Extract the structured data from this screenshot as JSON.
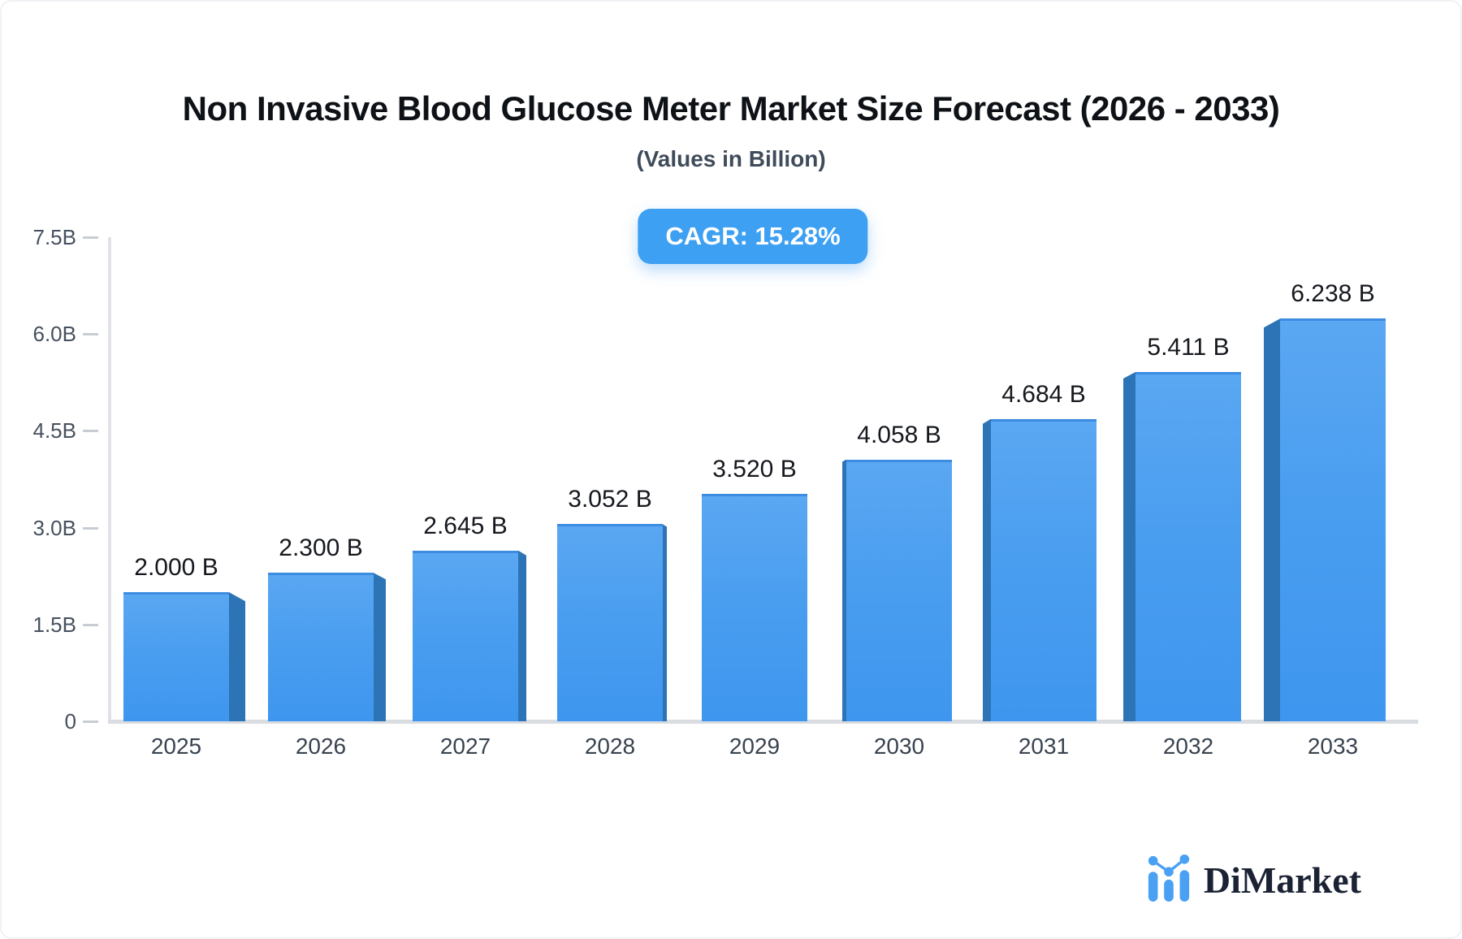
{
  "title": "Non Invasive Blood Glucose Meter Market Size Forecast (2026 - 2033)",
  "subtitle": "(Values in Billion)",
  "badge": {
    "label": "CAGR: 15.28%",
    "color": "#3da0f2"
  },
  "chart_data": {
    "type": "bar",
    "title": "Non Invasive Blood Glucose Meter Market Size Forecast (2026 - 2033)",
    "subtitle": "(Values in Billion)",
    "categories": [
      "2025",
      "2026",
      "2027",
      "2028",
      "2029",
      "2030",
      "2031",
      "2032",
      "2033"
    ],
    "values": [
      2.0,
      2.3,
      2.645,
      3.052,
      3.52,
      4.058,
      4.684,
      5.411,
      6.238
    ],
    "value_labels": [
      "2.000 B",
      "2.300 B",
      "2.645 B",
      "3.052 B",
      "3.520 B",
      "4.058 B",
      "4.684 B",
      "5.411 B",
      "6.238 B"
    ],
    "xlabel": "",
    "ylabel": "",
    "ylim": [
      0,
      7.5
    ],
    "ytick_values": [
      0,
      1.5,
      3.0,
      4.5,
      6.0,
      7.5
    ],
    "ytick_labels": [
      "0",
      "1.5B",
      "3.0B",
      "4.5B",
      "6.0B",
      "7.5B"
    ],
    "grid": false,
    "legend": "none",
    "annotation": "CAGR: 15.28%",
    "bar_color_top": "#5aa7f2",
    "bar_color_bottom": "#3e96ee",
    "bar_side_color": "#2d74b6"
  },
  "logo": {
    "text": "DiMarket",
    "icon": "bar-chart-logo-icon",
    "icon_color": "#4aa0f3",
    "text_color": "#1a2233"
  }
}
